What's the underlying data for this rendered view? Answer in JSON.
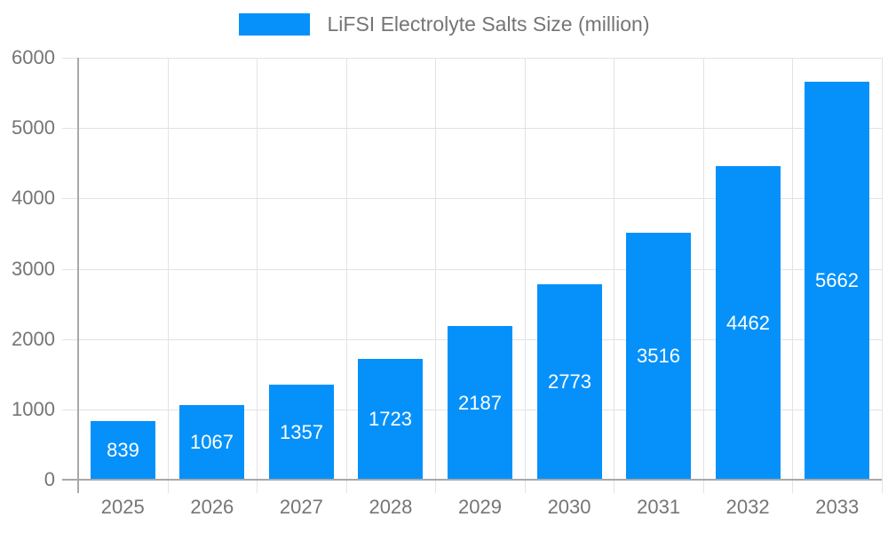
{
  "chart_data": {
    "type": "bar",
    "title": "LiFSI Electrolyte Salts Size (million)",
    "categories": [
      "2025",
      "2026",
      "2027",
      "2028",
      "2029",
      "2030",
      "2031",
      "2032",
      "2033"
    ],
    "values": [
      839,
      1067,
      1357,
      1723,
      2187,
      2773,
      3516,
      4462,
      5662
    ],
    "xlabel": "",
    "ylabel": "",
    "ylim": [
      0,
      6000
    ],
    "y_ticks": [
      0,
      1000,
      2000,
      3000,
      4000,
      5000,
      6000
    ],
    "grid": true,
    "legend_position": "top",
    "colors": {
      "bar": "#0691fa",
      "value_label": "#ffffff",
      "axis_text": "#757575",
      "grid_line": "#e3e3e3",
      "axis_line": "#a8a8a8"
    }
  }
}
